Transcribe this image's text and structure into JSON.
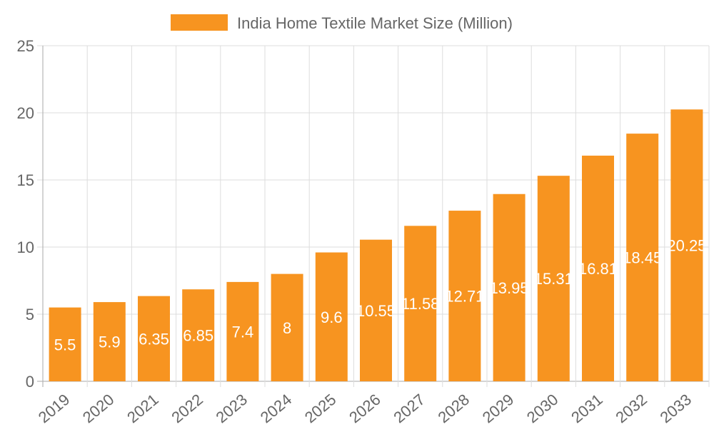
{
  "chart_data": {
    "type": "bar",
    "title": "",
    "legend": {
      "label": "India Home Textile Market Size (Million)",
      "placement": "top"
    },
    "categories": [
      "2019",
      "2020",
      "2021",
      "2022",
      "2023",
      "2024",
      "2025",
      "2026",
      "2027",
      "2028",
      "2029",
      "2030",
      "2031",
      "2032",
      "2033"
    ],
    "series": [
      {
        "name": "India Home Textile Market Size (Million)",
        "values": [
          5.5,
          5.9,
          6.35,
          6.85,
          7.4,
          8,
          9.6,
          10.55,
          11.58,
          12.71,
          13.95,
          15.31,
          16.81,
          18.45,
          20.25
        ]
      }
    ],
    "data_labels": [
      "5.5",
      "5.9",
      "6.35",
      "6.85",
      "7.4",
      "8",
      "9.6",
      "10.55",
      "11.58",
      "12.71",
      "13.95",
      "15.31",
      "16.81",
      "18.45",
      "20.25"
    ],
    "y_ticks": [
      "0",
      "5",
      "10",
      "15",
      "20",
      "25"
    ],
    "ylim": [
      0,
      25
    ],
    "grid": true,
    "color": "#f79420"
  }
}
